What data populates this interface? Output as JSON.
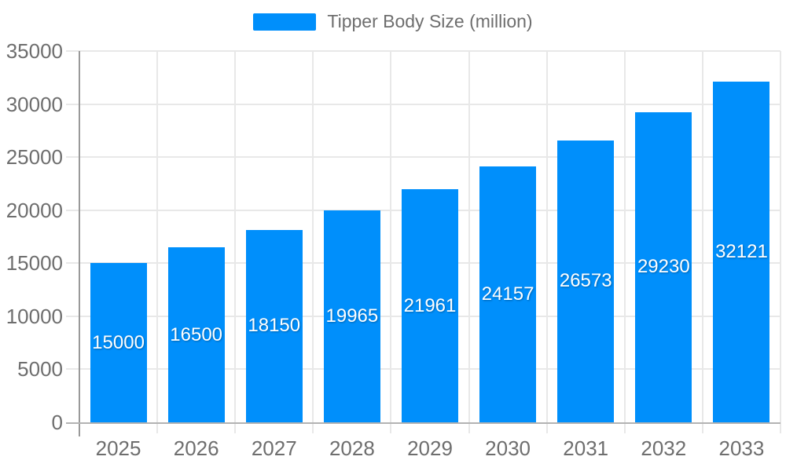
{
  "legend": {
    "label": "Tipper Body Size (million)"
  },
  "chart_data": {
    "type": "bar",
    "title": "",
    "categories": [
      "2025",
      "2026",
      "2027",
      "2028",
      "2029",
      "2030",
      "2031",
      "2032",
      "2033"
    ],
    "values": [
      15000,
      16500,
      18150,
      19965,
      21961,
      24157,
      26573,
      29230,
      32121
    ],
    "series_name": "Tipper Body Size (million)",
    "xlabel": "",
    "ylabel": "",
    "ylim": [
      0,
      35000
    ],
    "yticks": [
      0,
      5000,
      10000,
      15000,
      20000,
      25000,
      30000,
      35000
    ],
    "grid": true,
    "legend_position": "top",
    "value_labels": "inside-center"
  },
  "colors": {
    "bar": "#008FFB",
    "grid": "#e8e8e8",
    "axis_line": "#999999",
    "baseline": "#b3b3b3",
    "tick_label": "#6e6e6e",
    "legend_text": "#6e6e6e",
    "value_label": "#ffffff",
    "background": "#ffffff"
  }
}
